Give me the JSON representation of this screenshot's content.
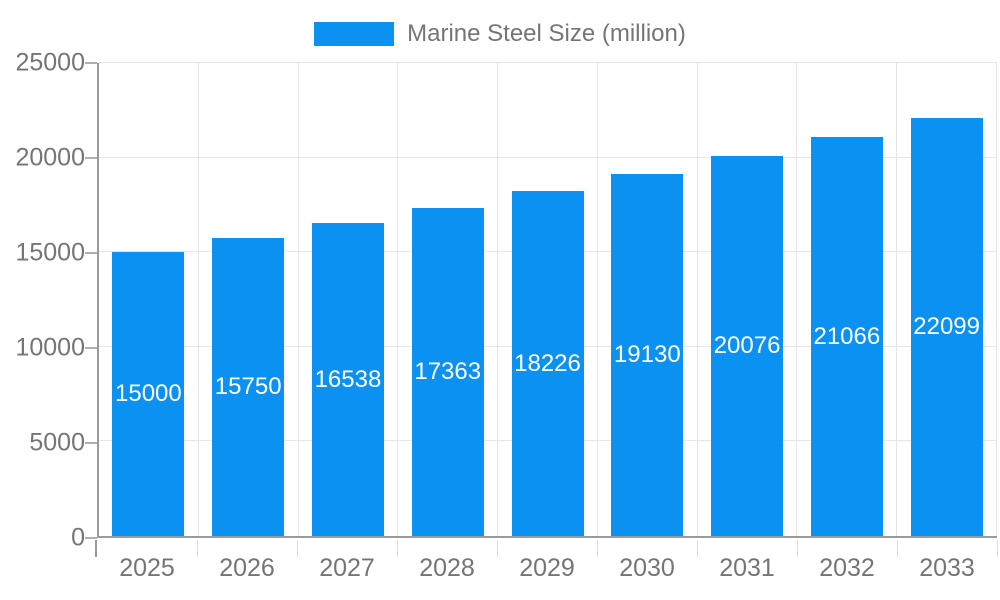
{
  "legend": {
    "label": "Marine Steel Size (million)",
    "swatch_color": "#0a91f2"
  },
  "chart_data": {
    "type": "bar",
    "title": "Marine Steel Size (million)",
    "series_name": "Marine Steel Size (million)",
    "categories": [
      "2025",
      "2026",
      "2027",
      "2028",
      "2029",
      "2030",
      "2031",
      "2032",
      "2033"
    ],
    "values": [
      15000,
      15750,
      16538,
      17363,
      18226,
      19130,
      20076,
      21066,
      22099
    ],
    "xlabel": "",
    "ylabel": "",
    "ylim": [
      0,
      25000
    ],
    "yticks": [
      0,
      5000,
      10000,
      15000,
      20000,
      25000
    ],
    "grid": true,
    "legend_position": "top-center",
    "bar_color": "#0a91f2",
    "bar_label_color": "#ffffff",
    "axis_line_color": "#9a9a9a",
    "gridline_color": "#e6e6e6",
    "text_color": "#757575"
  }
}
